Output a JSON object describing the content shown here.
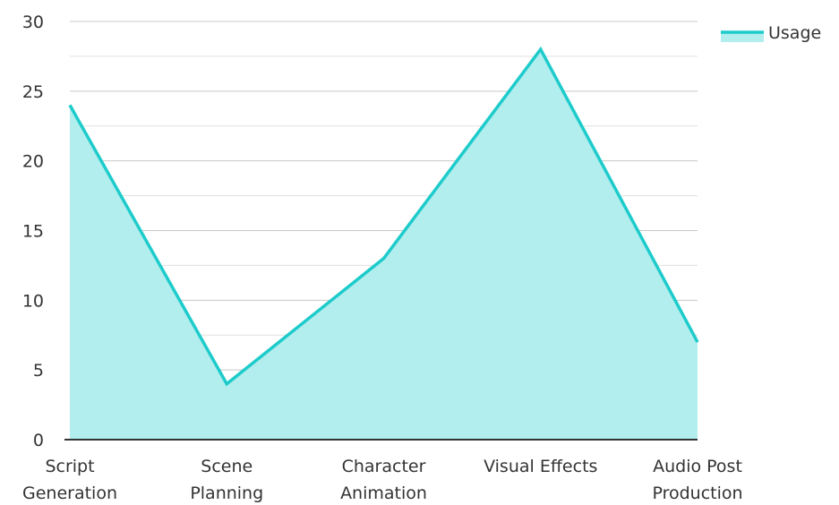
{
  "chart_data": {
    "type": "area",
    "categories": [
      [
        "Script",
        "Generation"
      ],
      [
        "Scene",
        "Planning"
      ],
      [
        "Character",
        "Animation"
      ],
      [
        "Visual Effects"
      ],
      [
        "Audio Post",
        "Production"
      ]
    ],
    "series": [
      {
        "name": "Usage",
        "values": [
          24,
          4,
          13,
          28,
          7
        ]
      }
    ],
    "ylim": [
      0,
      30
    ],
    "yticks": [
      0,
      5,
      10,
      15,
      20,
      25,
      30
    ],
    "grid": true,
    "legend": "top-right",
    "colors": {
      "line": "#1ecbcb",
      "fill": "#b2eeee",
      "grid_major": "#c8c8c8",
      "grid_minor": "#e0e0e0",
      "axis": "#333333",
      "text": "#333333"
    }
  }
}
